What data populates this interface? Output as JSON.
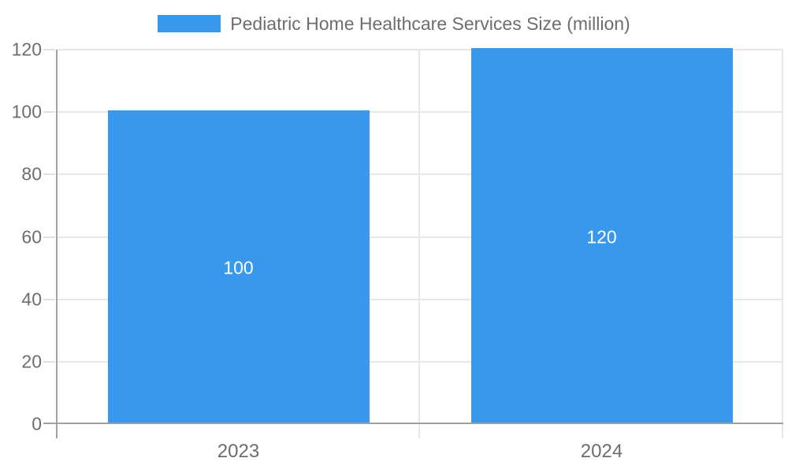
{
  "legend": {
    "position": "top-center",
    "items": [
      {
        "label": "Pediatric Home Healthcare Services Size (million)",
        "color": "#3899ec"
      }
    ]
  },
  "chart_data": {
    "type": "bar",
    "title": "Pediatric Home Healthcare Services Size (million)",
    "categories": [
      "2023",
      "2024"
    ],
    "series": [
      {
        "name": "Pediatric Home Healthcare Services Size (million)",
        "color": "#3899ec",
        "values": [
          100,
          120
        ]
      }
    ],
    "data_labels": [
      "100",
      "120"
    ],
    "data_label_color": "#ffffff",
    "xlabel": "",
    "ylabel": "",
    "ylim": [
      0,
      120
    ],
    "yticks": [
      0,
      20,
      40,
      60,
      80,
      100,
      120
    ],
    "grid": true,
    "legend_position": "top",
    "background_color": "#ffffff",
    "axis_color": "#a0a0a0",
    "grid_color": "#e7e7e7",
    "tick_label_color": "#6d6d6d"
  }
}
